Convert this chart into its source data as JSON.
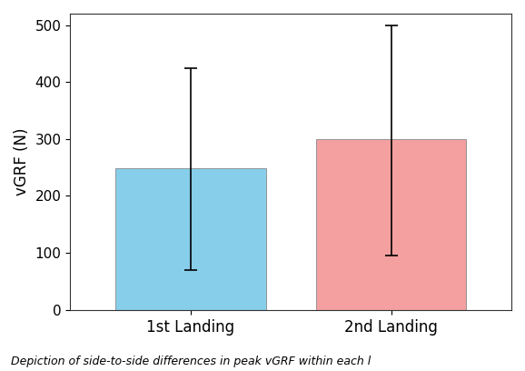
{
  "categories": [
    "1st Landing",
    "2nd Landing"
  ],
  "values": [
    248,
    300
  ],
  "bar_colors": [
    "#87CEEB",
    "#F4A0A0"
  ],
  "bar_edge_colors": [
    "#888888",
    "#888888"
  ],
  "error_upper": [
    177,
    200
  ],
  "error_lower": [
    178,
    205
  ],
  "ylabel": "vGRF (N)",
  "ylim": [
    0,
    520
  ],
  "yticks": [
    0,
    100,
    200,
    300,
    400,
    500
  ],
  "bar_width": 0.75,
  "caption": "Depiction of side-to-side differences in peak vGRF within each l",
  "figsize": [
    5.78,
    4.08
  ],
  "dpi": 100,
  "background_color": "#ffffff",
  "error_capsize": 5,
  "error_linewidth": 1.2,
  "error_color": "black",
  "x_positions": [
    1,
    2
  ],
  "xlim": [
    0.4,
    2.6
  ]
}
